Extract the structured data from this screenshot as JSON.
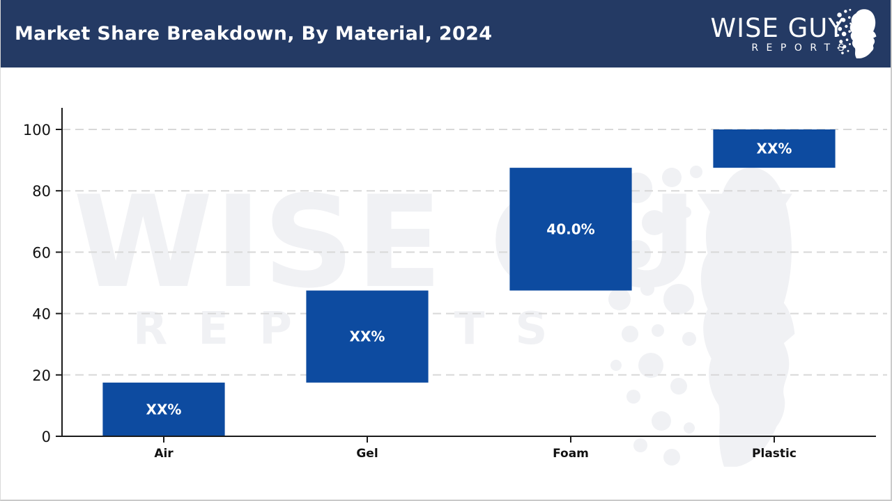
{
  "header": {
    "title": "Market Share Breakdown, By Material, 2024",
    "logo": {
      "line1": "WISE GUY",
      "line2": "REPORTS"
    }
  },
  "watermark": {
    "line1": "WISE GUY",
    "line2": "REPORTS"
  },
  "colors": {
    "header_bg": "#243a64",
    "title_text": "#ffffff",
    "bar": "#0d4ba0",
    "bar_label": "#ffffff",
    "axis": "#1a1a1a",
    "grid": "#d8d8d8",
    "tick_label": "#111111",
    "category_label": "#111111",
    "watermark": "#f0f1f4",
    "page_border": "#c9c9c9"
  },
  "chart_data": {
    "type": "bar",
    "subtype": "floating-waterfall-segments",
    "title": "Market Share Breakdown, By Material, 2024",
    "categories": [
      "Air",
      "Gel",
      "Foam",
      "Plastic"
    ],
    "segments": [
      {
        "category": "Air",
        "from": 0,
        "to": 17.5,
        "label": "XX%"
      },
      {
        "category": "Gel",
        "from": 17.5,
        "to": 47.5,
        "label": "XX%"
      },
      {
        "category": "Foam",
        "from": 47.5,
        "to": 87.5,
        "label": "40.0%"
      },
      {
        "category": "Plastic",
        "from": 87.5,
        "to": 100,
        "label": "XX%"
      }
    ],
    "ylim": [
      0,
      100
    ],
    "yticks": [
      0,
      20,
      40,
      60,
      80,
      100
    ],
    "xlabel": "",
    "ylabel": "",
    "grid": "horizontal-dashed",
    "legend": "none"
  }
}
